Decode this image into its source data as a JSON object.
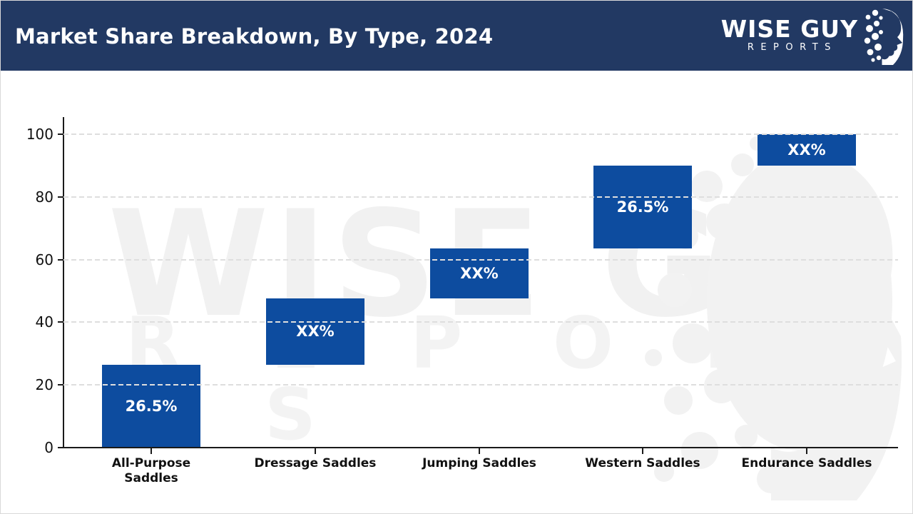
{
  "header": {
    "title": "Market Share Breakdown, By Type, 2024",
    "bg_color": "#223963",
    "logo": {
      "line1": "WISE GUY",
      "line2": "REPORTS"
    }
  },
  "watermark": {
    "line1": "WISE GU",
    "line2": "REPORTS"
  },
  "chart_data": {
    "type": "bar",
    "subtype": "floating stacked market-share breakdown (waterfall-style segments)",
    "title": "Market Share Breakdown, By Type, 2024",
    "categories": [
      "All-Purpose\nSaddles",
      "Dressage Saddles",
      "Jumping Saddles",
      "Western Saddles",
      "Endurance Saddles"
    ],
    "segments": [
      {
        "category": "All-Purpose Saddles",
        "start": 0,
        "end": 26.5,
        "implied_value": 26.5,
        "label": "26.5%"
      },
      {
        "category": "Dressage Saddles",
        "start": 26.5,
        "end": 47.6,
        "implied_value": 21.1,
        "label": "XX%"
      },
      {
        "category": "Jumping Saddles",
        "start": 47.6,
        "end": 63.5,
        "implied_value": 15.9,
        "label": "XX%"
      },
      {
        "category": "Western Saddles",
        "start": 63.5,
        "end": 90,
        "implied_value": 26.5,
        "label": "26.5%"
      },
      {
        "category": "Endurance Saddles",
        "start": 90,
        "end": 100,
        "implied_value": 10,
        "label": "XX%"
      }
    ],
    "y_ticks": [
      0,
      20,
      40,
      60,
      80,
      100
    ],
    "ylim": [
      0,
      105
    ],
    "xlabel": "",
    "ylabel": "",
    "bar_color": "#0d4c9f",
    "bar_label_color": "#ffffff",
    "grid": "horizontal dashed light-gray lines drawn over bars",
    "legend": "none"
  }
}
